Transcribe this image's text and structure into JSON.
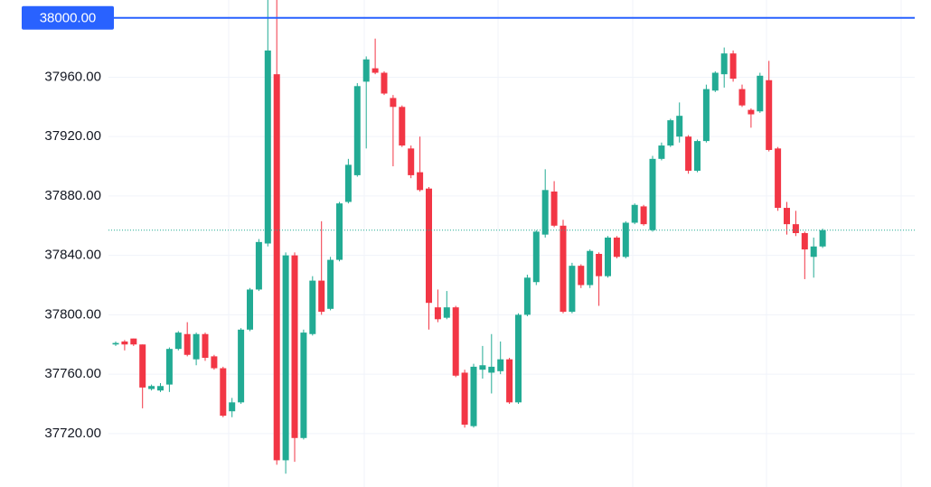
{
  "chart_data": {
    "type": "candlestick",
    "ylim": [
      37684,
      38012
    ],
    "yticks": [
      {
        "value": 37720,
        "label": "37720.00"
      },
      {
        "value": 37760,
        "label": "37760.00"
      },
      {
        "value": 37800,
        "label": "37800.00"
      },
      {
        "value": 37840,
        "label": "37840.00"
      },
      {
        "value": 37880,
        "label": "37880.00"
      },
      {
        "value": 37920,
        "label": "37920.00"
      },
      {
        "value": 37960,
        "label": "37960.00"
      }
    ],
    "grid": true,
    "up_color": "#22ab94",
    "down_color": "#f23645",
    "price_line": {
      "value": 38000,
      "label": "38000.00",
      "color": "#2962ff"
    },
    "last_price_line": {
      "value": 37857,
      "color": "#22ab94"
    },
    "series": [
      {
        "open": [
          37780,
          37782,
          37784,
          37780,
          37750,
          37749,
          37753,
          37777,
          37787,
          37770,
          37787,
          37772,
          37764,
          37735,
          37741,
          37790,
          37817,
          37848,
          37962,
          37702,
          37840,
          37717,
          37787,
          37823,
          37804,
          37837,
          37876,
          37894,
          37957,
          37966,
          37963,
          37946,
          37940,
          37912,
          37896,
          37885,
          37805,
          37798,
          37805,
          37761,
          37725,
          37763,
          37761,
          37762,
          37770,
          37741,
          37800,
          37822,
          37854,
          37883,
          37860,
          37802,
          37833,
          37820,
          37841,
          37826,
          37852,
          37839,
          37862,
          37873,
          37857,
          37905,
          37914,
          37920,
          37920,
          37897,
          37917,
          37951,
          37962,
          37976,
          37952,
          37938,
          37937,
          37958,
          37912,
          37872,
          37861,
          37855,
          37839,
          37846
        ],
        "high": [
          37782,
          37783,
          37784,
          37780,
          37753,
          37754,
          37778,
          37789,
          37795,
          37788,
          37788,
          37773,
          37765,
          37744,
          37791,
          37818,
          37851,
          38012,
          38012,
          37842,
          37842,
          37790,
          37826,
          37863,
          37839,
          37876,
          37905,
          37956,
          37974,
          37986,
          37964,
          37948,
          37941,
          37914,
          37920,
          37886,
          37817,
          37816,
          37806,
          37763,
          37767,
          37779,
          37787,
          37782,
          37771,
          37801,
          37827,
          37857,
          37898,
          37890,
          37864,
          37835,
          37834,
          37844,
          37842,
          37853,
          37853,
          37863,
          37875,
          37874,
          37907,
          37916,
          37932,
          37943,
          37921,
          37918,
          37955,
          37964,
          37980,
          37978,
          37955,
          37939,
          37963,
          37971,
          37913,
          37876,
          37870,
          37856,
          37852,
          37858
        ],
        "low": [
          37779,
          37776,
          37779,
          37737,
          37749,
          37748,
          37748,
          37776,
          37772,
          37766,
          37769,
          37763,
          37731,
          37731,
          37740,
          37789,
          37816,
          37846,
          37699,
          37693,
          37701,
          37716,
          37786,
          37800,
          37803,
          37836,
          37875,
          37893,
          37912,
          37962,
          37948,
          37900,
          37913,
          37892,
          37883,
          37790,
          37795,
          37797,
          37758,
          37724,
          37724,
          37757,
          37747,
          37760,
          37740,
          37740,
          37799,
          37820,
          37852,
          37859,
          37801,
          37801,
          37818,
          37818,
          37806,
          37825,
          37838,
          37838,
          37861,
          37860,
          37856,
          37904,
          37913,
          37916,
          37895,
          37896,
          37916,
          37950,
          37953,
          37957,
          37940,
          37926,
          37936,
          37910,
          37870,
          37854,
          37853,
          37824,
          37825,
          37845
        ],
        "close": [
          37781,
          37780,
          37780,
          37751,
          37752,
          37752,
          37777,
          37788,
          37773,
          37787,
          37771,
          37764,
          37732,
          37741,
          37790,
          37817,
          37849,
          37978,
          37702,
          37840,
          37717,
          37788,
          37823,
          37802,
          37837,
          37875,
          37901,
          37954,
          37972,
          37963,
          37949,
          37940,
          37914,
          37894,
          37884,
          37808,
          37797,
          37805,
          37759,
          37726,
          37765,
          37766,
          37765,
          37770,
          37741,
          37800,
          37825,
          37856,
          37884,
          37860,
          37802,
          37833,
          37820,
          37843,
          37826,
          37852,
          37839,
          37862,
          37874,
          37861,
          37905,
          37914,
          37931,
          37934,
          37897,
          37917,
          37952,
          37963,
          37976,
          37959,
          37941,
          37935,
          37961,
          37911,
          37872,
          37861,
          37855,
          37844,
          37846,
          37857
        ]
      }
    ]
  }
}
